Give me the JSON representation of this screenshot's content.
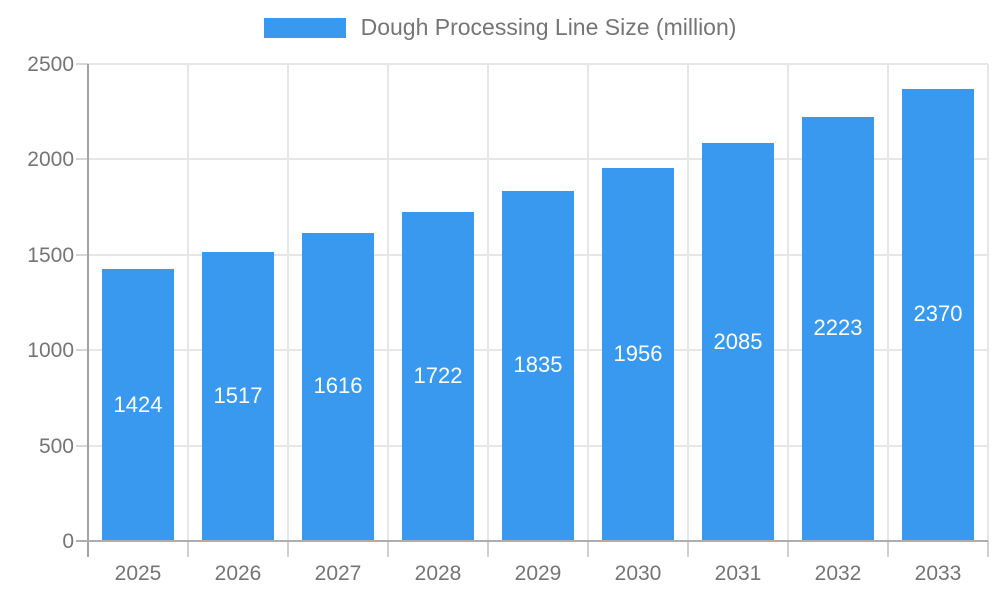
{
  "legend": {
    "label": "Dough Processing Line Size (million)",
    "swatch_color": "#3899EE"
  },
  "chart_data": {
    "type": "bar",
    "title": "Dough Processing Line Size (million)",
    "categories": [
      "2025",
      "2026",
      "2027",
      "2028",
      "2029",
      "2030",
      "2031",
      "2032",
      "2033"
    ],
    "values": [
      1424,
      1517,
      1616,
      1722,
      1835,
      1956,
      2085,
      2223,
      2370
    ],
    "series_name": "Dough Processing Line Size (million)",
    "xlabel": "",
    "ylabel": "",
    "ylim": [
      0,
      2500
    ],
    "yticks": [
      0,
      500,
      1000,
      1500,
      2000,
      2500
    ],
    "grid": true,
    "legend_position": "top",
    "bar_color": "#3899EE",
    "value_label_color": "#ffffff",
    "axis_text_color": "#757575"
  }
}
